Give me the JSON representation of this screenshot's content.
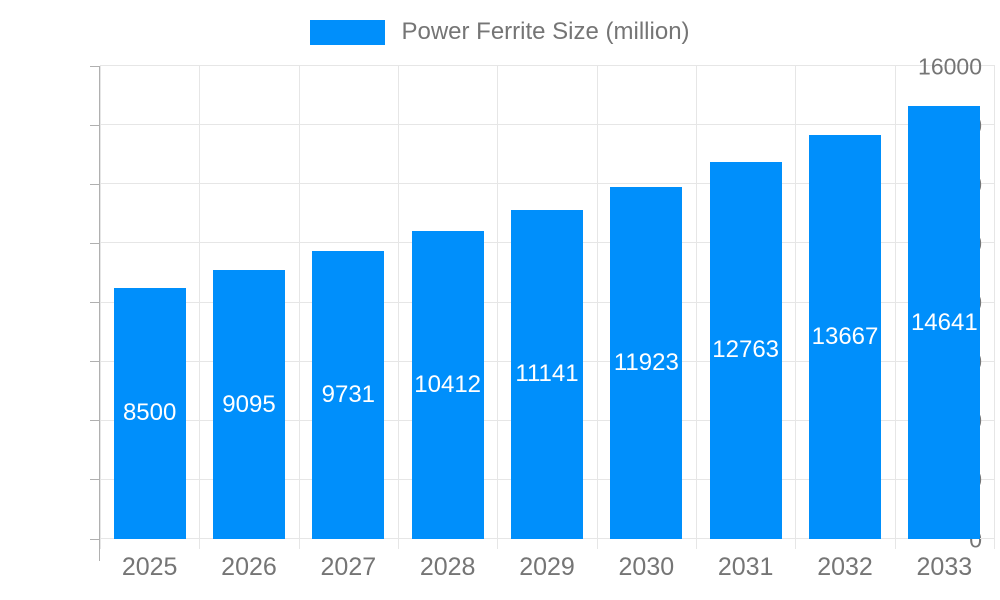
{
  "chart_data": {
    "type": "bar",
    "title": "Power Ferrite Size (million)",
    "categories": [
      "2025",
      "2026",
      "2027",
      "2028",
      "2029",
      "2030",
      "2031",
      "2032",
      "2033"
    ],
    "series": [
      {
        "name": "Power Ferrite Size (million)",
        "values": [
          8500,
          9095,
          9731,
          10412,
          11141,
          11923,
          12763,
          13667,
          14641
        ]
      }
    ],
    "xlabel": "",
    "ylabel": "",
    "ylim": [
      0,
      16000
    ],
    "ytick_step": 2000,
    "ytick_labels": [
      "0",
      "2000",
      "4000",
      "6000",
      "8000",
      "10000",
      "12000",
      "14000",
      "16000"
    ],
    "grid": "horizontal and vertical light gridlines",
    "legend_position": "top-center",
    "value_labels": "white, centered inside bars",
    "colors": {
      "bar": "#008FFB",
      "value_label": "#ffffff",
      "axis_label": "#757575",
      "legend_text": "#757575",
      "gridline": "#e6e6e6",
      "axis_line": "#b0b0b0",
      "background": "#ffffff"
    }
  },
  "legend": {
    "label": "Power Ferrite Size (million)"
  }
}
